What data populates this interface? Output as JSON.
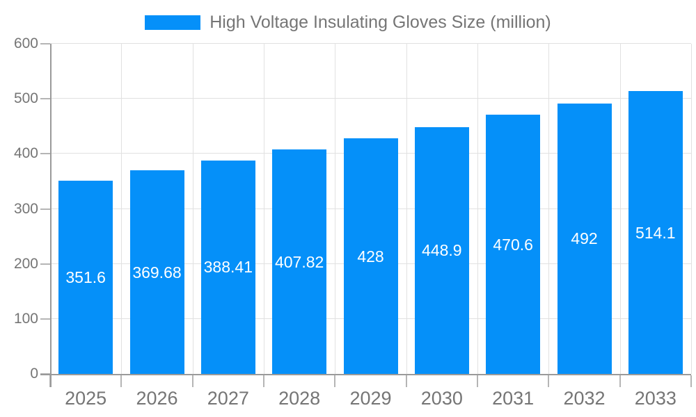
{
  "chart_data": {
    "type": "bar",
    "title": "High Voltage Insulating Gloves Size (million)",
    "categories": [
      "2025",
      "2026",
      "2027",
      "2028",
      "2029",
      "2030",
      "2031",
      "2032",
      "2033"
    ],
    "series": [
      {
        "name": "High Voltage Insulating Gloves Size (million)",
        "values": [
          351.6,
          369.68,
          388.41,
          407.82,
          428,
          448.9,
          470.6,
          492,
          514.1
        ]
      }
    ],
    "value_labels": [
      "351.6",
      "369.68",
      "388.41",
      "407.82",
      "428",
      "448.9",
      "470.6",
      "492",
      "514.1"
    ],
    "xlabel": "",
    "ylabel": "",
    "ylim": [
      0,
      600
    ],
    "yticks": [
      0,
      100,
      200,
      300,
      400,
      500,
      600
    ],
    "grid": true,
    "legend_position": "top-center",
    "value_label_position": "inside-center",
    "colors": {
      "bar": "#0590f9",
      "grid": "#e1e1e1",
      "axis": "#9a9a9a",
      "tick": "#b5b5b5",
      "tick_text": "#757575",
      "legend_text": "#757575",
      "value_text": "#ffffff",
      "background": "#ffffff"
    }
  }
}
